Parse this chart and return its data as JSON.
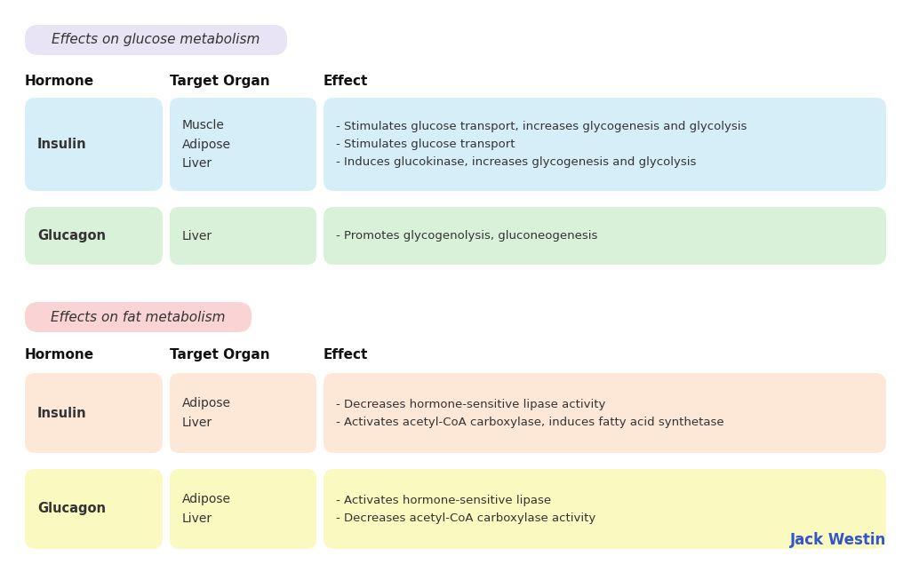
{
  "bg_color": "#ffffff",
  "fig_width": 10.25,
  "fig_height": 6.35,
  "section1_title": "Effects on glucose metabolism",
  "section1_title_bg": "#e8e4f5",
  "section1_title_color": "#333333",
  "section2_title": "Effects on fat metabolism",
  "section2_title_bg": "#fad4d4",
  "section2_title_color": "#333333",
  "header_hormone": "Hormone",
  "header_organ": "Target Organ",
  "header_effect": "Effect",
  "glucose_rows": [
    {
      "hormone": "Insulin",
      "organs": "Muscle\nAdipose\nLiver",
      "effects": "- Stimulates glucose transport, increases glycogenesis and glycolysis\n- Stimulates glucose transport\n- Induces glucokinase, increases glycogenesis and glycolysis",
      "bg": "#d6eef8"
    },
    {
      "hormone": "Glucagon",
      "organs": "Liver",
      "effects": "- Promotes glycogenolysis, gluconeogenesis",
      "bg": "#d9f0d9"
    }
  ],
  "fat_rows": [
    {
      "hormone": "Insulin",
      "organs": "Adipose\nLiver",
      "effects": "- Decreases hormone-sensitive lipase activity\n- Activates acetyl-CoA carboxylase, induces fatty acid synthetase",
      "bg": "#fde8d8"
    },
    {
      "hormone": "Glucagon",
      "organs": "Adipose\nLiver",
      "effects": "- Activates hormone-sensitive lipase\n- Decreases acetyl-CoA carboxylase activity",
      "bg": "#fafac0"
    }
  ],
  "signature": "Jack Westin",
  "signature_color": "#3355cc",
  "text_color": "#333333",
  "header_color": "#111111"
}
